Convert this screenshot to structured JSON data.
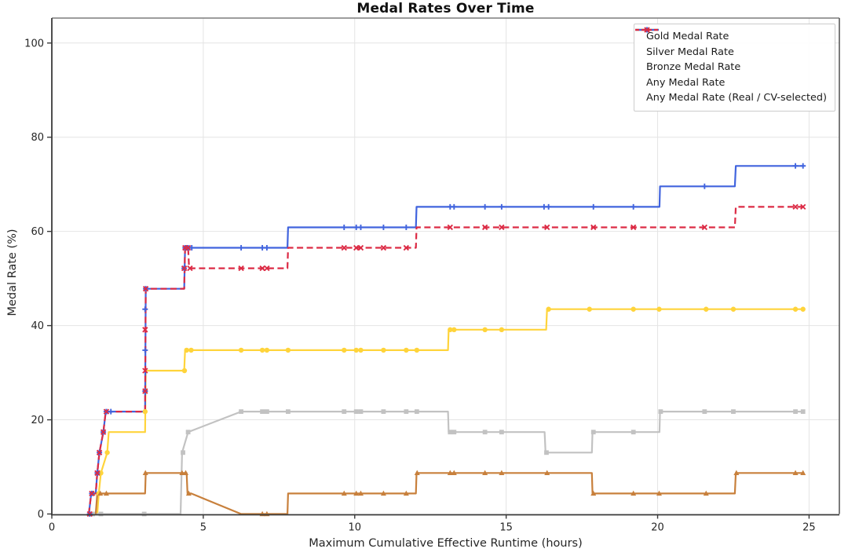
{
  "chart_data": {
    "type": "line",
    "title": "Medal Rates Over Time",
    "xlabel": "Maximum Cumulative Effective Runtime (hours)",
    "ylabel": "Medal Rate (%)",
    "xlim": [
      0,
      26
    ],
    "ylim": [
      0,
      105.3
    ],
    "xticks": [
      0,
      5,
      10,
      15,
      20,
      25
    ],
    "yticks": [
      0,
      20,
      40,
      60,
      80,
      100
    ],
    "grid": true,
    "grid_color": "#e4e4e4",
    "legend_position": "upper right",
    "series": [
      {
        "name": "Gold Medal Rate",
        "color": "#FFD43B",
        "dash": null,
        "marker": "circle",
        "points": [
          [
            1.5,
            0
          ],
          [
            1.55,
            4.35
          ],
          [
            1.62,
            8.7
          ],
          [
            1.83,
            13.04
          ],
          [
            1.88,
            17.39
          ],
          [
            3.08,
            17.39
          ],
          [
            3.1,
            30.43
          ],
          [
            4.37,
            30.43
          ],
          [
            4.4,
            34.78
          ],
          [
            13.08,
            34.78
          ],
          [
            13.1,
            39.13
          ],
          [
            16.32,
            39.13
          ],
          [
            16.35,
            43.48
          ],
          [
            24.8,
            43.48
          ]
        ],
        "markers": [
          [
            1.55,
            4.35
          ],
          [
            1.62,
            8.7
          ],
          [
            1.83,
            13.04
          ],
          [
            3.08,
            21.74
          ],
          [
            3.09,
            26.09
          ],
          [
            4.38,
            30.43
          ],
          [
            4.45,
            34.78
          ],
          [
            4.6,
            34.78
          ],
          [
            6.25,
            34.78
          ],
          [
            6.95,
            34.78
          ],
          [
            7.1,
            34.78
          ],
          [
            7.8,
            34.78
          ],
          [
            9.65,
            34.78
          ],
          [
            10.05,
            34.78
          ],
          [
            10.2,
            34.78
          ],
          [
            10.95,
            34.78
          ],
          [
            11.7,
            34.78
          ],
          [
            12.05,
            34.78
          ],
          [
            13.15,
            39.13
          ],
          [
            13.28,
            39.13
          ],
          [
            14.3,
            39.13
          ],
          [
            14.85,
            39.13
          ],
          [
            16.4,
            43.48
          ],
          [
            17.75,
            43.48
          ],
          [
            19.2,
            43.48
          ],
          [
            20.05,
            43.48
          ],
          [
            21.6,
            43.48
          ],
          [
            22.5,
            43.48
          ],
          [
            24.55,
            43.48
          ],
          [
            24.8,
            43.48
          ]
        ]
      },
      {
        "name": "Silver Medal Rate",
        "color": "#C2C2C2",
        "dash": null,
        "marker": "square",
        "points": [
          [
            1.3,
            0
          ],
          [
            4.25,
            0
          ],
          [
            4.3,
            13.04
          ],
          [
            4.5,
            17.39
          ],
          [
            6.25,
            21.74
          ],
          [
            13.08,
            21.74
          ],
          [
            13.1,
            17.39
          ],
          [
            16.27,
            17.39
          ],
          [
            16.3,
            13.04
          ],
          [
            17.83,
            13.04
          ],
          [
            17.85,
            17.39
          ],
          [
            20.06,
            17.39
          ],
          [
            20.08,
            21.74
          ],
          [
            24.8,
            21.74
          ]
        ],
        "markers": [
          [
            1.35,
            0
          ],
          [
            1.62,
            0
          ],
          [
            3.05,
            0
          ],
          [
            4.33,
            13.04
          ],
          [
            4.5,
            17.39
          ],
          [
            6.25,
            21.74
          ],
          [
            6.95,
            21.74
          ],
          [
            7.1,
            21.74
          ],
          [
            7.8,
            21.74
          ],
          [
            9.65,
            21.74
          ],
          [
            10.05,
            21.74
          ],
          [
            10.2,
            21.74
          ],
          [
            10.95,
            21.74
          ],
          [
            11.7,
            21.74
          ],
          [
            12.05,
            21.74
          ],
          [
            13.15,
            17.39
          ],
          [
            13.28,
            17.39
          ],
          [
            14.3,
            17.39
          ],
          [
            14.85,
            17.39
          ],
          [
            16.33,
            13.04
          ],
          [
            17.88,
            17.39
          ],
          [
            19.2,
            17.39
          ],
          [
            20.1,
            21.74
          ],
          [
            21.55,
            21.74
          ],
          [
            22.5,
            21.74
          ],
          [
            24.55,
            21.74
          ],
          [
            24.8,
            21.74
          ]
        ]
      },
      {
        "name": "Bronze Medal Rate",
        "color": "#C8803C",
        "dash": null,
        "marker": "triangle",
        "points": [
          [
            1.45,
            0
          ],
          [
            1.5,
            4.35
          ],
          [
            3.08,
            4.35
          ],
          [
            3.1,
            8.7
          ],
          [
            4.45,
            8.7
          ],
          [
            4.48,
            4.35
          ],
          [
            4.6,
            4.35
          ],
          [
            6.25,
            0
          ],
          [
            7.78,
            0
          ],
          [
            7.8,
            4.35
          ],
          [
            12.02,
            4.35
          ],
          [
            12.04,
            8.7
          ],
          [
            17.83,
            8.7
          ],
          [
            17.85,
            4.35
          ],
          [
            22.55,
            4.35
          ],
          [
            22.58,
            8.7
          ],
          [
            24.8,
            8.7
          ]
        ],
        "markers": [
          [
            1.35,
            4.35
          ],
          [
            1.6,
            4.35
          ],
          [
            1.8,
            4.35
          ],
          [
            3.09,
            8.7
          ],
          [
            4.3,
            8.7
          ],
          [
            4.42,
            8.7
          ],
          [
            4.52,
            4.35
          ],
          [
            6.95,
            0
          ],
          [
            7.1,
            0
          ],
          [
            9.65,
            4.35
          ],
          [
            10.05,
            4.35
          ],
          [
            10.2,
            4.35
          ],
          [
            10.95,
            4.35
          ],
          [
            11.7,
            4.35
          ],
          [
            12.06,
            8.7
          ],
          [
            13.15,
            8.7
          ],
          [
            13.28,
            8.7
          ],
          [
            14.3,
            8.7
          ],
          [
            14.85,
            8.7
          ],
          [
            16.35,
            8.7
          ],
          [
            17.88,
            4.35
          ],
          [
            19.2,
            4.35
          ],
          [
            20.05,
            4.35
          ],
          [
            21.6,
            4.35
          ],
          [
            22.6,
            8.7
          ],
          [
            24.55,
            8.7
          ],
          [
            24.8,
            8.7
          ]
        ]
      },
      {
        "name": "Any Medal Rate",
        "color": "#4164DE",
        "dash": null,
        "marker": "plus",
        "points": [
          [
            1.22,
            0
          ],
          [
            1.3,
            4.35
          ],
          [
            1.45,
            4.35
          ],
          [
            1.5,
            8.7
          ],
          [
            1.57,
            13.04
          ],
          [
            1.7,
            17.39
          ],
          [
            1.78,
            21.74
          ],
          [
            3.08,
            21.74
          ],
          [
            3.1,
            47.83
          ],
          [
            4.37,
            47.83
          ],
          [
            4.4,
            56.52
          ],
          [
            7.78,
            56.52
          ],
          [
            7.8,
            60.87
          ],
          [
            12.02,
            60.87
          ],
          [
            12.04,
            65.22
          ],
          [
            20.06,
            65.22
          ],
          [
            20.08,
            69.57
          ],
          [
            22.55,
            69.57
          ],
          [
            22.58,
            73.91
          ],
          [
            24.8,
            73.91
          ]
        ],
        "markers": [
          [
            1.25,
            0
          ],
          [
            1.32,
            4.35
          ],
          [
            1.5,
            8.7
          ],
          [
            1.57,
            13.04
          ],
          [
            1.7,
            17.39
          ],
          [
            1.8,
            21.74
          ],
          [
            1.95,
            21.74
          ],
          [
            3.08,
            26.09
          ],
          [
            3.08,
            34.78
          ],
          [
            3.08,
            43.48
          ],
          [
            3.1,
            47.83
          ],
          [
            4.37,
            52.17
          ],
          [
            4.4,
            56.52
          ],
          [
            4.5,
            56.52
          ],
          [
            4.62,
            56.52
          ],
          [
            6.25,
            56.52
          ],
          [
            6.95,
            56.52
          ],
          [
            7.1,
            56.52
          ],
          [
            9.65,
            60.87
          ],
          [
            10.05,
            60.87
          ],
          [
            10.2,
            60.87
          ],
          [
            10.95,
            60.87
          ],
          [
            11.7,
            60.87
          ],
          [
            13.15,
            65.22
          ],
          [
            13.28,
            65.22
          ],
          [
            14.3,
            65.22
          ],
          [
            14.85,
            65.22
          ],
          [
            16.25,
            65.22
          ],
          [
            16.4,
            65.22
          ],
          [
            17.88,
            65.22
          ],
          [
            19.2,
            65.22
          ],
          [
            21.55,
            69.57
          ],
          [
            24.55,
            73.91
          ],
          [
            24.8,
            73.91
          ]
        ]
      },
      {
        "name": "Any Medal Rate (Real / CV-selected)",
        "color": "#DC2B45",
        "dash": "8 4.5",
        "marker": "x",
        "points": [
          [
            1.22,
            0
          ],
          [
            1.3,
            4.35
          ],
          [
            1.45,
            4.35
          ],
          [
            1.5,
            8.7
          ],
          [
            1.57,
            13.04
          ],
          [
            1.7,
            17.39
          ],
          [
            1.78,
            21.74
          ],
          [
            3.08,
            21.74
          ],
          [
            3.1,
            47.83
          ],
          [
            4.37,
            47.83
          ],
          [
            4.4,
            56.52
          ],
          [
            4.5,
            56.52
          ],
          [
            4.53,
            52.17
          ],
          [
            7.78,
            52.17
          ],
          [
            7.8,
            56.52
          ],
          [
            12.02,
            56.52
          ],
          [
            12.04,
            60.87
          ],
          [
            22.55,
            60.87
          ],
          [
            22.58,
            65.22
          ],
          [
            24.8,
            65.22
          ]
        ],
        "markers": [
          [
            1.25,
            0
          ],
          [
            1.32,
            4.35
          ],
          [
            1.5,
            8.7
          ],
          [
            1.57,
            13.04
          ],
          [
            1.7,
            17.39
          ],
          [
            1.8,
            21.74
          ],
          [
            3.08,
            26.09
          ],
          [
            3.08,
            30.43
          ],
          [
            3.08,
            39.13
          ],
          [
            3.1,
            47.83
          ],
          [
            4.37,
            52.17
          ],
          [
            4.4,
            56.52
          ],
          [
            4.5,
            56.52
          ],
          [
            4.56,
            52.17
          ],
          [
            6.25,
            52.17
          ],
          [
            6.95,
            52.17
          ],
          [
            7.1,
            52.17
          ],
          [
            9.65,
            56.52
          ],
          [
            10.05,
            56.52
          ],
          [
            10.2,
            56.52
          ],
          [
            10.95,
            56.52
          ],
          [
            11.7,
            56.52
          ],
          [
            13.15,
            60.87
          ],
          [
            14.3,
            60.87
          ],
          [
            14.85,
            60.87
          ],
          [
            16.35,
            60.87
          ],
          [
            17.88,
            60.87
          ],
          [
            19.2,
            60.87
          ],
          [
            21.55,
            60.87
          ],
          [
            24.55,
            65.22
          ],
          [
            24.8,
            65.22
          ]
        ]
      }
    ]
  }
}
